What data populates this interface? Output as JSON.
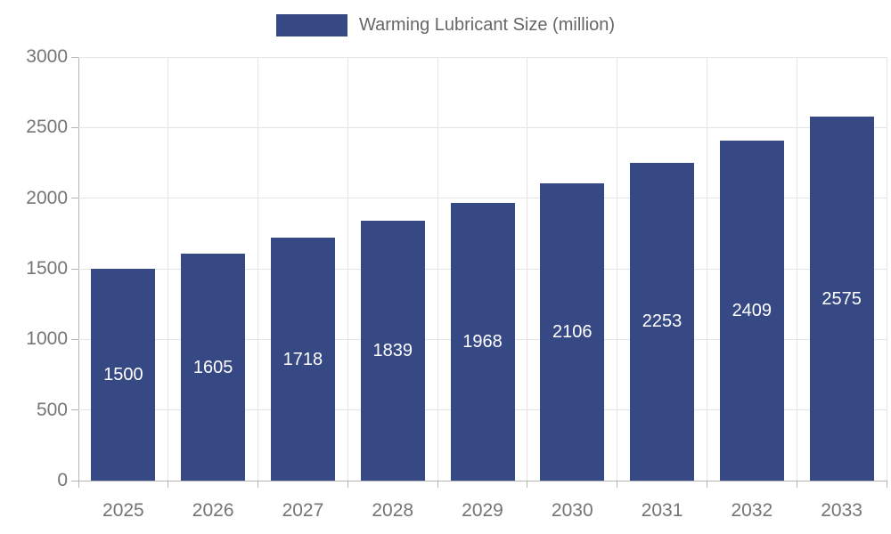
{
  "legend": {
    "label": "Warming Lubricant Size (million)"
  },
  "chart_data": {
    "type": "bar",
    "title": "Warming Lubricant Size (million)",
    "series_name": "Warming Lubricant Size (million)",
    "categories": [
      "2025",
      "2026",
      "2027",
      "2028",
      "2029",
      "2030",
      "2031",
      "2032",
      "2033"
    ],
    "values": [
      1500,
      1605,
      1718,
      1839,
      1968,
      2106,
      2253,
      2409,
      2575
    ],
    "bar_value_labels": [
      "1500",
      "1605",
      "1718",
      "1839",
      "1968",
      "2106",
      "2253",
      "2409",
      "2575"
    ],
    "xlabel": "",
    "ylabel": "",
    "ylim": [
      0,
      3000
    ],
    "y_ticks": [
      0,
      500,
      1000,
      1500,
      2000,
      2500,
      3000
    ],
    "grid": true,
    "legend_position": "top-center",
    "colors": {
      "bar": "#374984",
      "bar_label": "#ffffff",
      "grid_line": "#e4e4e4",
      "axis_line": "#b4b4b4",
      "tick_label": "#757575",
      "legend_text": "#666666",
      "background": "#ffffff"
    }
  }
}
